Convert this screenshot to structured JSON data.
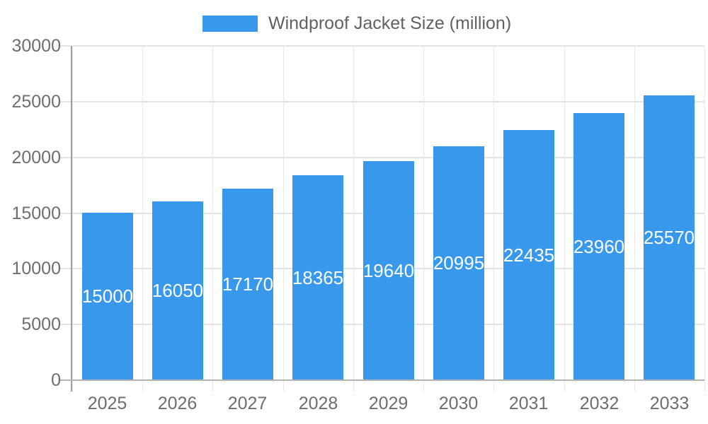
{
  "legend": {
    "label": "Windproof Jacket Size (million)",
    "swatch_color": "#3898EC"
  },
  "chart_data": {
    "type": "bar",
    "title": "Windproof Jacket Size (million)",
    "categories": [
      "2025",
      "2026",
      "2027",
      "2028",
      "2029",
      "2030",
      "2031",
      "2032",
      "2033"
    ],
    "values": [
      15000,
      16050,
      17170,
      18365,
      19640,
      20995,
      22435,
      23960,
      25570
    ],
    "bar_labels": [
      "15000",
      "16050",
      "17170",
      "18365",
      "19640",
      "20995",
      "22435",
      "23960",
      "25570"
    ],
    "xlabel": "",
    "ylabel": "",
    "ylim": [
      0,
      30000
    ],
    "yticks": [
      0,
      5000,
      10000,
      15000,
      20000,
      25000,
      30000
    ],
    "ytick_labels": [
      "0",
      "5000",
      "10000",
      "15000",
      "20000",
      "25000",
      "30000"
    ],
    "grid": true,
    "legend_position": "top-center",
    "bar_color": "#3898EC",
    "value_label_color": "#FFFFFF",
    "axis_text_color": "#6E6E6E",
    "gridline_color": "#E3E3E3",
    "axis_line_color": "#9E9E9E"
  }
}
